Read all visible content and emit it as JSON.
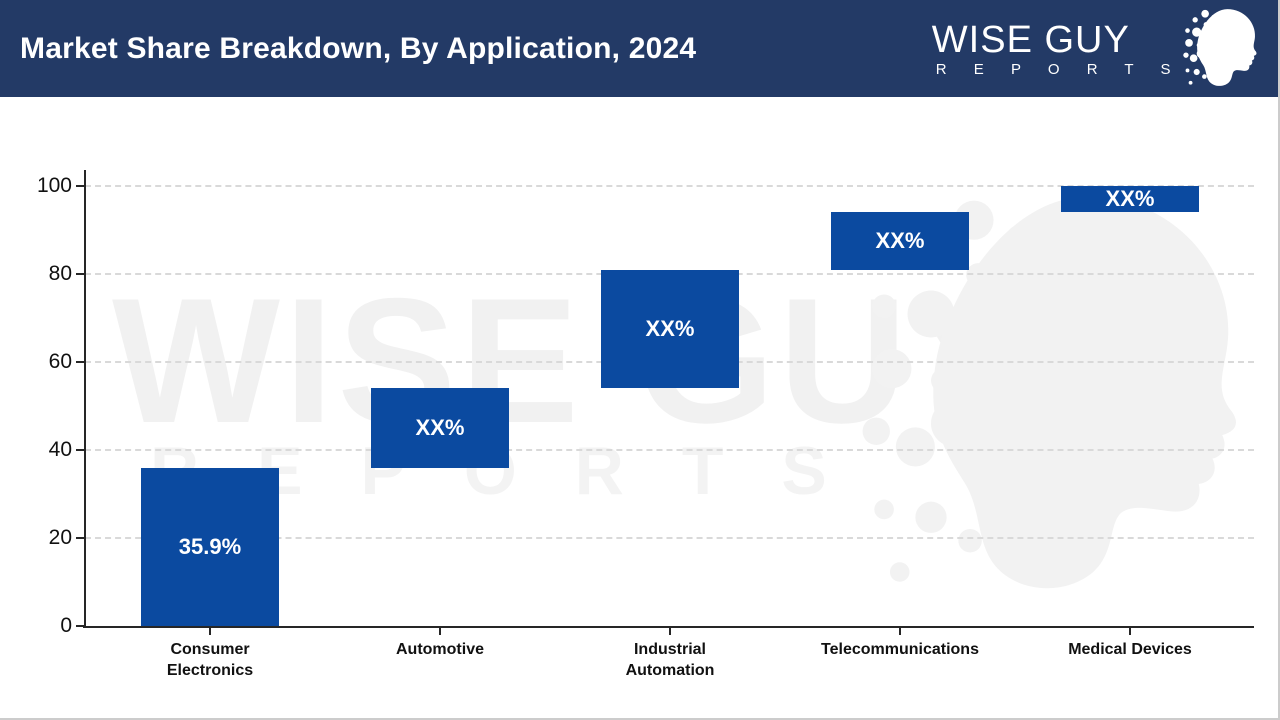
{
  "header": {
    "title": "Market Share Breakdown, By Application, 2024",
    "bg_color": "#233A66",
    "logo": {
      "name": "WISE GUY",
      "sub": "R E P O R T S",
      "icon": "dotted-head-profile"
    }
  },
  "watermark": {
    "line1": "WISE GUY",
    "line2": "REPORTS"
  },
  "chart_data": {
    "type": "bar",
    "subtype": "floating-range-waterfall",
    "title": "Market Share Breakdown, By Application, 2024",
    "categories": [
      "Consumer\nElectronics",
      "Automotive",
      "Industrial\nAutomation",
      "Telecommunications",
      "Medical Devices"
    ],
    "series": [
      {
        "name": "Market share (%)",
        "ranges": [
          [
            0,
            35.9
          ],
          [
            35.9,
            54
          ],
          [
            54,
            81
          ],
          [
            81,
            94
          ],
          [
            94,
            100
          ]
        ],
        "labels": [
          "35.9%",
          "XX%",
          "XX%",
          "XX%",
          "XX%"
        ]
      }
    ],
    "ylim": [
      0,
      100
    ],
    "yticks": [
      0,
      20,
      40,
      60,
      80,
      100
    ],
    "xlabel": "",
    "ylabel": "",
    "grid": "dashed-horizontal",
    "legend": "none",
    "bar_color": "#0B4AA0",
    "bar_label_color": "#FFFFFF",
    "grid_color": "#D9D9D9",
    "axis_color": "#262626",
    "watermark_color": "#F1F1F1"
  }
}
